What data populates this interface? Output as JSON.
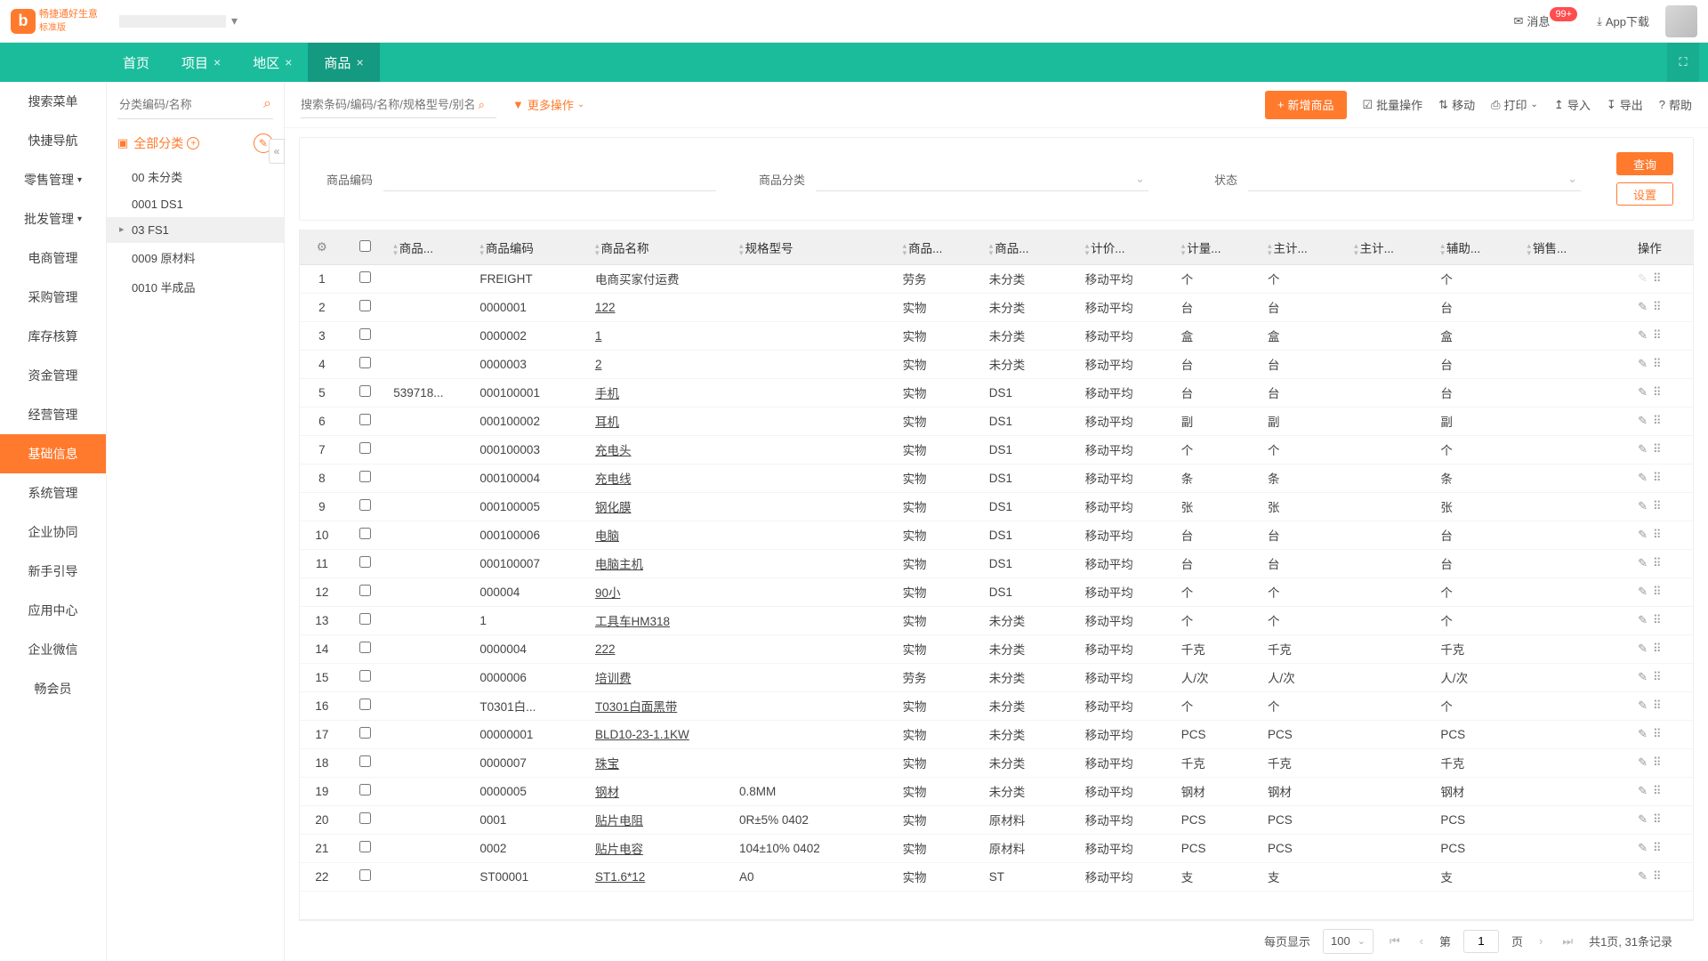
{
  "topbar": {
    "logo_text_top": "畅捷通好生意",
    "logo_text_bottom": "标准版",
    "company_placeholder": "▾",
    "messages_label": "消息",
    "messages_badge": "99+",
    "app_download": "App下载"
  },
  "tabs": [
    {
      "label": "首页",
      "closable": false,
      "active": false
    },
    {
      "label": "项目",
      "closable": true,
      "active": false
    },
    {
      "label": "地区",
      "closable": true,
      "active": false
    },
    {
      "label": "商品",
      "closable": true,
      "active": true
    }
  ],
  "sidebar": [
    {
      "label": "搜索菜单",
      "active": false,
      "caret": false
    },
    {
      "label": "快捷导航",
      "active": false,
      "caret": false
    },
    {
      "label": "零售管理",
      "active": false,
      "caret": true
    },
    {
      "label": "批发管理",
      "active": false,
      "caret": true
    },
    {
      "label": "电商管理",
      "active": false,
      "caret": false
    },
    {
      "label": "采购管理",
      "active": false,
      "caret": false
    },
    {
      "label": "库存核算",
      "active": false,
      "caret": false
    },
    {
      "label": "资金管理",
      "active": false,
      "caret": false
    },
    {
      "label": "经营管理",
      "active": false,
      "caret": false
    },
    {
      "label": "基础信息",
      "active": true,
      "caret": false
    },
    {
      "label": "系统管理",
      "active": false,
      "caret": false
    },
    {
      "label": "企业协同",
      "active": false,
      "caret": false
    },
    {
      "label": "新手引导",
      "active": false,
      "caret": false
    },
    {
      "label": "应用中心",
      "active": false,
      "caret": false
    },
    {
      "label": "企业微信",
      "active": false,
      "caret": false
    },
    {
      "label": "畅会员",
      "active": false,
      "caret": false
    }
  ],
  "category": {
    "search_placeholder": "分类编码/名称",
    "all_label": "全部分类",
    "items": [
      {
        "label": "00 未分类",
        "has_children": false,
        "selected": false
      },
      {
        "label": "0001 DS1",
        "has_children": false,
        "selected": false
      },
      {
        "label": "03 FS1",
        "has_children": true,
        "selected": true
      },
      {
        "label": "0009 原材料",
        "has_children": false,
        "selected": false
      },
      {
        "label": "0010 半成品",
        "has_children": false,
        "selected": false
      }
    ]
  },
  "toolbar": {
    "search_placeholder": "搜索条码/编码/名称/规格型号/别名",
    "more_actions": "更多操作",
    "new_product": "新增商品",
    "batch_action": "批量操作",
    "move": "移动",
    "print": "打印",
    "import": "导入",
    "export": "导出",
    "help": "帮助"
  },
  "filters": {
    "code_label": "商品编码",
    "category_label": "商品分类",
    "status_label": "状态",
    "search_btn": "查询",
    "set_btn": "设置"
  },
  "columns": [
    "商品...",
    "商品编码",
    "商品名称",
    "规格型号",
    "商品...",
    "商品...",
    "计价...",
    "计量...",
    "主计...",
    "主计...",
    "辅助...",
    "销售...",
    "操作"
  ],
  "rows": [
    {
      "idx": 1,
      "img": "",
      "code": "FREIGHT",
      "name": "电商买家付运费",
      "name_link": false,
      "spec": "",
      "type": "劳务",
      "cat": "未分类",
      "pm": "移动平均",
      "cu": "个",
      "mu": "个",
      "mu2": "",
      "aux": "个",
      "op_disabled": true
    },
    {
      "idx": 2,
      "img": "",
      "code": "0000001",
      "name": "122",
      "name_link": true,
      "spec": "",
      "type": "实物",
      "cat": "未分类",
      "pm": "移动平均",
      "cu": "台",
      "mu": "台",
      "mu2": "",
      "aux": "台"
    },
    {
      "idx": 3,
      "img": "",
      "code": "0000002",
      "name": "1",
      "name_link": true,
      "spec": "",
      "type": "实物",
      "cat": "未分类",
      "pm": "移动平均",
      "cu": "盒",
      "mu": "盒",
      "mu2": "",
      "aux": "盒"
    },
    {
      "idx": 4,
      "img": "",
      "code": "0000003",
      "name": "2",
      "name_link": true,
      "spec": "",
      "type": "实物",
      "cat": "未分类",
      "pm": "移动平均",
      "cu": "台",
      "mu": "台",
      "mu2": "",
      "aux": "台"
    },
    {
      "idx": 5,
      "img": "539718...",
      "code": "000100001",
      "name": "手机",
      "name_link": true,
      "spec": "",
      "type": "实物",
      "cat": "DS1",
      "pm": "移动平均",
      "cu": "台",
      "mu": "台",
      "mu2": "",
      "aux": "台"
    },
    {
      "idx": 6,
      "img": "",
      "code": "000100002",
      "name": "耳机",
      "name_link": true,
      "spec": "",
      "type": "实物",
      "cat": "DS1",
      "pm": "移动平均",
      "cu": "副",
      "mu": "副",
      "mu2": "",
      "aux": "副"
    },
    {
      "idx": 7,
      "img": "",
      "code": "000100003",
      "name": "充电头",
      "name_link": true,
      "spec": "",
      "type": "实物",
      "cat": "DS1",
      "pm": "移动平均",
      "cu": "个",
      "mu": "个",
      "mu2": "",
      "aux": "个"
    },
    {
      "idx": 8,
      "img": "",
      "code": "000100004",
      "name": "充电线",
      "name_link": true,
      "spec": "",
      "type": "实物",
      "cat": "DS1",
      "pm": "移动平均",
      "cu": "条",
      "mu": "条",
      "mu2": "",
      "aux": "条"
    },
    {
      "idx": 9,
      "img": "",
      "code": "000100005",
      "name": "钢化膜",
      "name_link": true,
      "spec": "",
      "type": "实物",
      "cat": "DS1",
      "pm": "移动平均",
      "cu": "张",
      "mu": "张",
      "mu2": "",
      "aux": "张"
    },
    {
      "idx": 10,
      "img": "",
      "code": "000100006",
      "name": "电脑",
      "name_link": true,
      "spec": "",
      "type": "实物",
      "cat": "DS1",
      "pm": "移动平均",
      "cu": "台",
      "mu": "台",
      "mu2": "",
      "aux": "台"
    },
    {
      "idx": 11,
      "img": "",
      "code": "000100007",
      "name": "电脑主机",
      "name_link": true,
      "spec": "",
      "type": "实物",
      "cat": "DS1",
      "pm": "移动平均",
      "cu": "台",
      "mu": "台",
      "mu2": "",
      "aux": "台"
    },
    {
      "idx": 12,
      "img": "",
      "code": "000004",
      "name": "90小",
      "name_link": true,
      "spec": "",
      "type": "实物",
      "cat": "DS1",
      "pm": "移动平均",
      "cu": "个",
      "mu": "个",
      "mu2": "",
      "aux": "个"
    },
    {
      "idx": 13,
      "img": "",
      "code": "1",
      "name": "工具车HM318",
      "name_link": true,
      "spec": "",
      "type": "实物",
      "cat": "未分类",
      "pm": "移动平均",
      "cu": "个",
      "mu": "个",
      "mu2": "",
      "aux": "个"
    },
    {
      "idx": 14,
      "img": "",
      "code": "0000004",
      "name": "222",
      "name_link": true,
      "spec": "",
      "type": "实物",
      "cat": "未分类",
      "pm": "移动平均",
      "cu": "千克",
      "mu": "千克",
      "mu2": "",
      "aux": "千克"
    },
    {
      "idx": 15,
      "img": "",
      "code": "0000006",
      "name": "培训费",
      "name_link": true,
      "spec": "",
      "type": "劳务",
      "cat": "未分类",
      "pm": "移动平均",
      "cu": "人/次",
      "mu": "人/次",
      "mu2": "",
      "aux": "人/次"
    },
    {
      "idx": 16,
      "img": "",
      "code": "T0301白...",
      "name": "T0301白面黑带",
      "name_link": true,
      "spec": "",
      "type": "实物",
      "cat": "未分类",
      "pm": "移动平均",
      "cu": "个",
      "mu": "个",
      "mu2": "",
      "aux": "个"
    },
    {
      "idx": 17,
      "img": "",
      "code": "00000001",
      "name": "BLD10-23-1.1KW",
      "name_link": true,
      "spec": "",
      "type": "实物",
      "cat": "未分类",
      "pm": "移动平均",
      "cu": "PCS",
      "mu": "PCS",
      "mu2": "",
      "aux": "PCS"
    },
    {
      "idx": 18,
      "img": "",
      "code": "0000007",
      "name": "珠宝",
      "name_link": true,
      "spec": "",
      "type": "实物",
      "cat": "未分类",
      "pm": "移动平均",
      "cu": "千克",
      "mu": "千克",
      "mu2": "",
      "aux": "千克"
    },
    {
      "idx": 19,
      "img": "",
      "code": "0000005",
      "name": "钢材",
      "name_link": true,
      "spec": "0.8MM",
      "type": "实物",
      "cat": "未分类",
      "pm": "移动平均",
      "cu": "钢材",
      "mu": "钢材",
      "mu2": "",
      "aux": "钢材"
    },
    {
      "idx": 20,
      "img": "",
      "code": "0001",
      "name": "贴片电阻",
      "name_link": true,
      "spec": "0R±5% 0402",
      "type": "实物",
      "cat": "原材料",
      "pm": "移动平均",
      "cu": "PCS",
      "mu": "PCS",
      "mu2": "",
      "aux": "PCS"
    },
    {
      "idx": 21,
      "img": "",
      "code": "0002",
      "name": "贴片电容",
      "name_link": true,
      "spec": "104±10% 0402",
      "type": "实物",
      "cat": "原材料",
      "pm": "移动平均",
      "cu": "PCS",
      "mu": "PCS",
      "mu2": "",
      "aux": "PCS"
    },
    {
      "idx": 22,
      "img": "",
      "code": "ST00001",
      "name": "ST1.6*12",
      "name_link": true,
      "spec": "A0",
      "type": "实物",
      "cat": "ST",
      "pm": "移动平均",
      "cu": "支",
      "mu": "支",
      "mu2": "",
      "aux": "支"
    }
  ],
  "pagination": {
    "per_page_label": "每页显示",
    "per_page_value": "100",
    "page_label_prefix": "第",
    "page_value": "1",
    "page_label_suffix": "页",
    "summary": "共1页, 31条记录"
  }
}
